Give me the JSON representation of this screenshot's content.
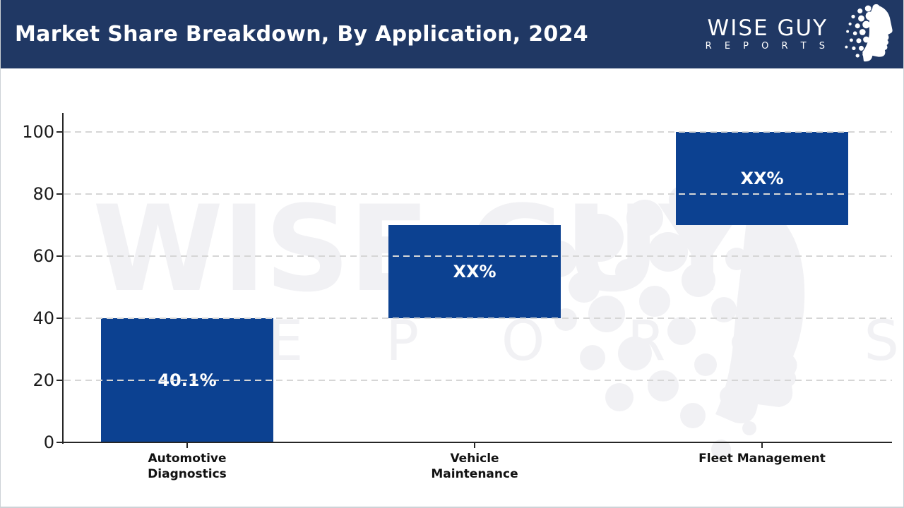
{
  "header": {
    "title": "Market Share Breakdown, By Application, 2024",
    "logo": {
      "wordmark": "WISE GUY",
      "subtext": "R E P O R T S",
      "icon": "dotted-head-profile-icon"
    }
  },
  "watermark": {
    "wordmark": "WISE GUY",
    "subtext": "R E P O R T S",
    "icon": "dotted-head-profile-watermark"
  },
  "chart_data": {
    "type": "bar",
    "subtype": "floating-range-bars-waterfall-style",
    "title": "Market Share Breakdown, By Application, 2024",
    "categories": [
      "Automotive Diagnostics",
      "Vehicle Maintenance",
      "Fleet Management"
    ],
    "category_lines": [
      [
        "Automotive",
        "Diagnostics"
      ],
      [
        "Vehicle",
        "Maintenance"
      ],
      [
        "Fleet Management"
      ]
    ],
    "bars": [
      {
        "category": "Automotive Diagnostics",
        "from": 0,
        "to": 40.1,
        "label": "40.1%"
      },
      {
        "category": "Vehicle Maintenance",
        "from": 40,
        "to": 70,
        "label": "XX%"
      },
      {
        "category": "Fleet Management",
        "from": 70,
        "to": 100,
        "label": "XX%"
      }
    ],
    "yticks": [
      0,
      20,
      40,
      60,
      80,
      100
    ],
    "ylim": [
      0,
      106
    ],
    "xlabel": "",
    "ylabel": "",
    "grid": "horizontal-dashed",
    "legend": "none",
    "bar_color": "#0c4191",
    "bar_label_color": "#ffffff"
  },
  "colors": {
    "header_bg": "#203864",
    "bar_blue": "#0c4191",
    "grid_gray": "#d6d6d6",
    "axis_dark": "#262626",
    "watermark_gray": "#f1f1f4",
    "edge_gray": "#cdd2d6"
  }
}
